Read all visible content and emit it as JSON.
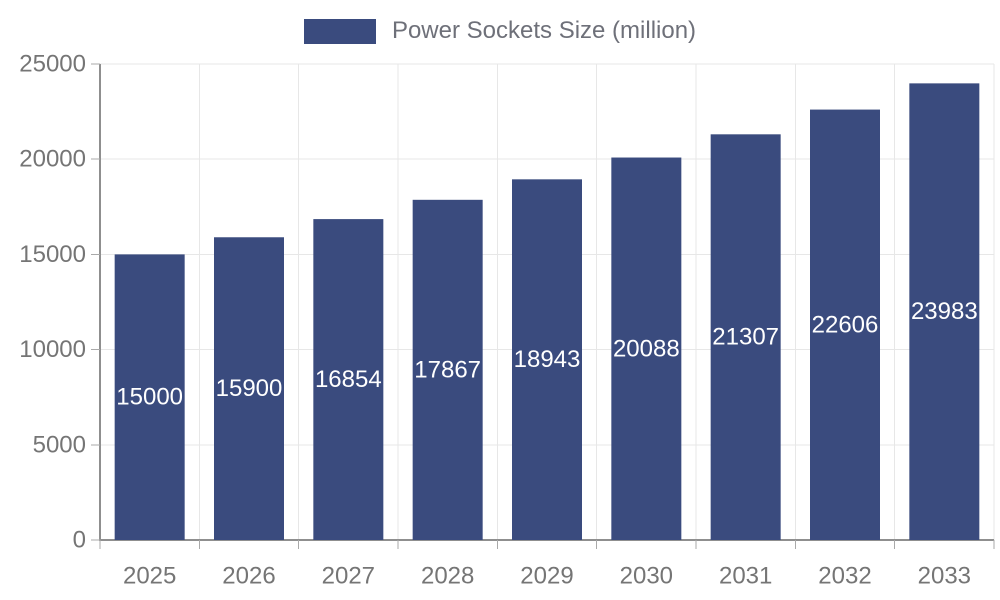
{
  "chart_data": {
    "type": "bar",
    "title": "",
    "series_name": "Power Sockets Size (million)",
    "categories": [
      "2025",
      "2026",
      "2027",
      "2028",
      "2029",
      "2030",
      "2031",
      "2032",
      "2033"
    ],
    "values": [
      15000,
      15900,
      16854,
      17867,
      18943,
      20088,
      21307,
      22606,
      23983
    ],
    "xlabel": "",
    "ylabel": "",
    "ylim": [
      0,
      25000
    ],
    "ytick_step": 5000,
    "ytick_labels": [
      "0",
      "5000",
      "10000",
      "15000",
      "20000",
      "25000"
    ],
    "grid": true,
    "legend_position": "top-center",
    "value_labels_position": "inside-center",
    "colors": {
      "bar": "#3A4B7E",
      "bar_label": "#FFFFFF",
      "grid": "#E7E7E7",
      "axis": "#8F8F8F",
      "tick": "#A9A9A9",
      "tick_label": "#757575",
      "legend_text": "#6E7079",
      "background": "#FFFFFF"
    }
  }
}
